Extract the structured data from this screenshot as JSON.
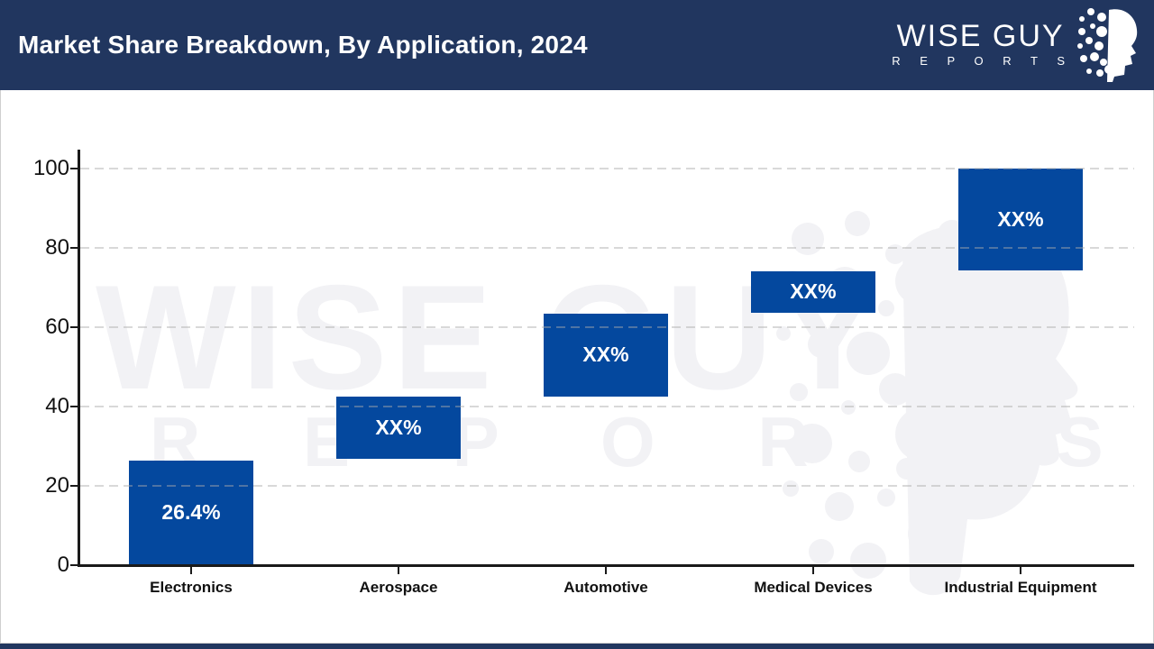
{
  "header": {
    "title": "Market Share Breakdown, By Application, 2024",
    "bg_color": "#21365F",
    "logo": {
      "wise_guy": "WISE GUY",
      "reports": "R E P O R T S"
    }
  },
  "watermark": {
    "line1": "WISE GUY",
    "line2": "R E P O R T S"
  },
  "chart_data": {
    "type": "bar",
    "subtype": "waterfall-floating-bars",
    "title": "Market Share Breakdown, By Application, 2024",
    "categories": [
      "Electronics",
      "Aerospace",
      "Automotive",
      "Medical Devices",
      "Industrial Equipment"
    ],
    "segments": [
      {
        "category": "Electronics",
        "start": 0,
        "end": 26.4,
        "label": "26.4%"
      },
      {
        "category": "Aerospace",
        "start": 26.8,
        "end": 42.5,
        "label": "XX%"
      },
      {
        "category": "Automotive",
        "start": 42.5,
        "end": 63.3,
        "label": "XX%"
      },
      {
        "category": "Medical Devices",
        "start": 63.6,
        "end": 74.0,
        "label": "XX%"
      },
      {
        "category": "Industrial Equipment",
        "start": 74.2,
        "end": 100,
        "label": "XX%"
      }
    ],
    "xlabel": "",
    "ylabel": "",
    "ylim": [
      0,
      110
    ],
    "yticks": [
      0,
      20,
      40,
      60,
      80,
      100
    ],
    "grid": "horizontal-dashed",
    "legend": "none",
    "bar_color": "#04489E",
    "axis_color": "#1a1a1a",
    "value_label_color": "#ffffff"
  }
}
